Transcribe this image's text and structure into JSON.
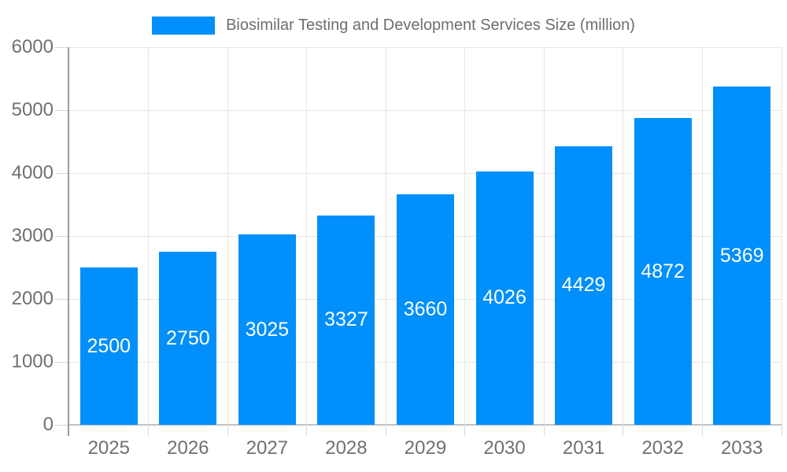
{
  "chart_data": {
    "type": "bar",
    "title": "Biosimilar Testing and Development Services Size (million)",
    "series": [
      {
        "name": "Biosimilar Testing and Development Services Size (million)",
        "values": [
          2500,
          2750,
          3025,
          3327,
          3660,
          4026,
          4429,
          4872,
          5369
        ]
      }
    ],
    "categories": [
      "2025",
      "2026",
      "2027",
      "2028",
      "2029",
      "2030",
      "2031",
      "2032",
      "2033"
    ],
    "values": [
      2500,
      2750,
      3025,
      3327,
      3660,
      4026,
      4429,
      4872,
      5369
    ],
    "value_labels": [
      "2500",
      "2750",
      "3025",
      "3327",
      "3660",
      "4026",
      "4429",
      "4872",
      "5369"
    ],
    "xlabel": "",
    "ylabel": "",
    "ylim": [
      0,
      6000
    ],
    "yticks": [
      0,
      1000,
      2000,
      3000,
      4000,
      5000,
      6000
    ],
    "ytick_labels": [
      "0",
      "1000",
      "2000",
      "3000",
      "4000",
      "5000",
      "6000"
    ],
    "grid": true,
    "legend_position": "top-center",
    "colors": {
      "bar": "#008FFB",
      "value_label": "#FFFFFF",
      "axis_label": "#707070",
      "legend_label": "#6E6E6E",
      "gridline": "#E6E6E6",
      "tick": "#D6D6D6",
      "axis_line": "#9B9B9B",
      "baseline": "#C2C2C2",
      "background": "#FFFFFF"
    }
  }
}
